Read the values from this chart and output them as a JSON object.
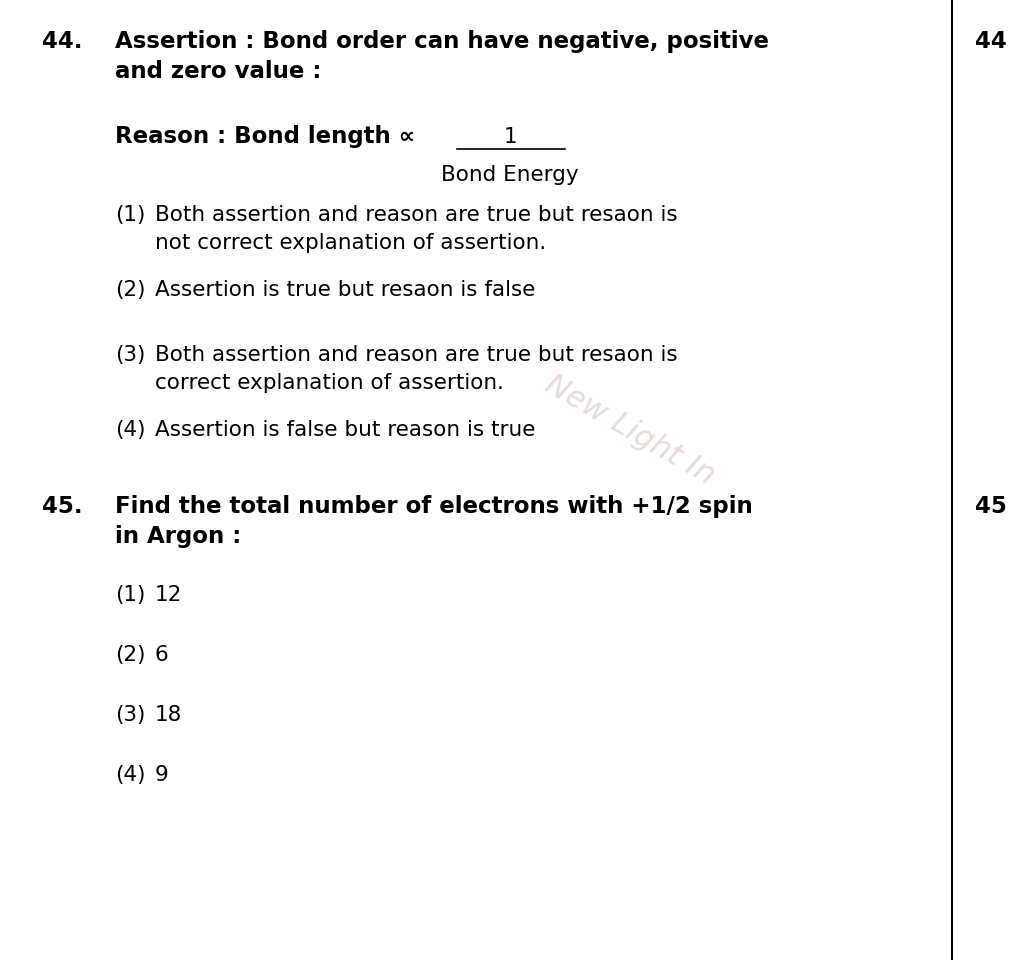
{
  "bg_color": "#ffffff",
  "text_color": "#000000",
  "q44_number": "44.",
  "q44_line1": "Assertion : Bond order can have negative, positive",
  "q44_line2": "and zero value :",
  "reason_label": "Reason : Bond length ∝",
  "fraction_numerator": "1",
  "fraction_denominator": "Bond Energy",
  "opt1_num": "(1)",
  "opt1_text1": "Both assertion and reason are true but resaon is",
  "opt1_text2": "not correct explanation of assertion.",
  "opt2_num": "(2)",
  "opt2_text": "Assertion is true but resaon is false",
  "opt3_num": "(3)",
  "opt3_text1": "Both assertion and reason are true but resaon is",
  "opt3_text2": "correct explanation of assertion.",
  "opt4_num": "(4)",
  "opt4_text": "Assertion is false but reason is true",
  "q45_number": "45.",
  "q45_line1": "Find the total number of electrons with +1/2 spin",
  "q45_line2": "in Argon :",
  "ans1_num": "(1)",
  "ans1_text": "12",
  "ans2_num": "(2)",
  "ans2_text": "6",
  "ans3_num": "(3)",
  "ans3_text": "18",
  "ans4_num": "(4)",
  "ans4_text": "9",
  "right_num_44": "44",
  "right_num_45": "45",
  "watermark_text": "New Light In",
  "watermark_color": "#c8a0a0",
  "watermark_alpha": 0.4
}
